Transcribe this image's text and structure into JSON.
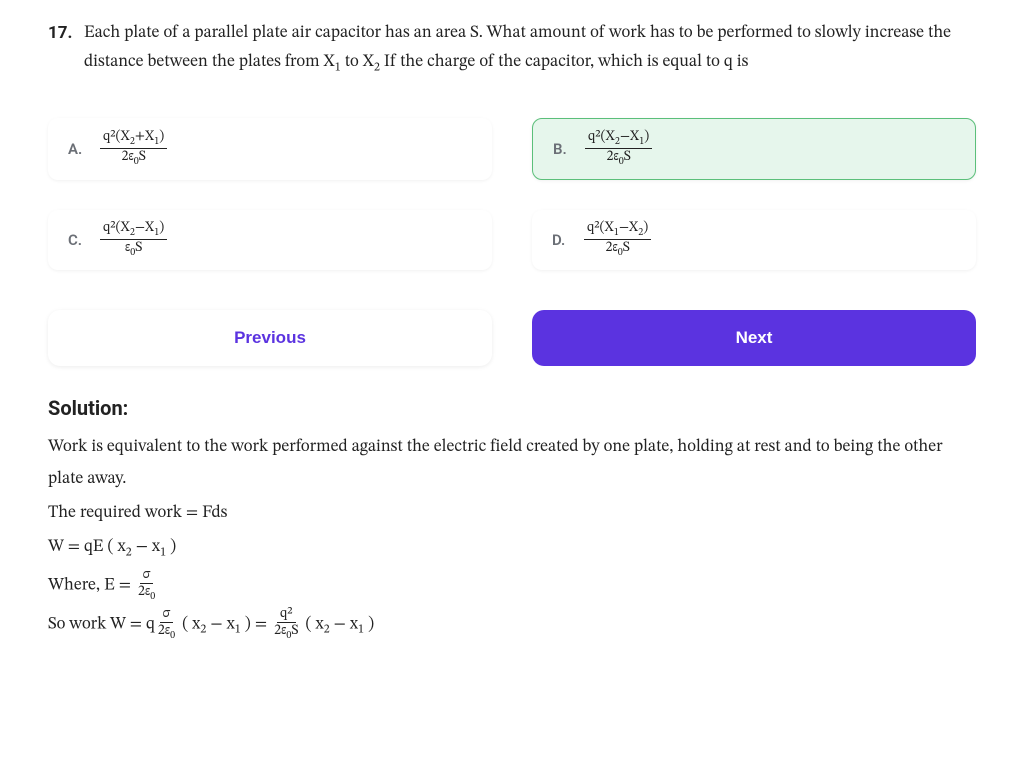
{
  "question": {
    "number": "17.",
    "text_html": "Each plate of a parallel plate air capacitor has an area S. What amount of work has to be performed to slowly increase the distance between the plates from X<sub>1</sub> to X<sub>2</sub>  If the charge of the capacitor, which is equal to q is"
  },
  "options": [
    {
      "letter": "A.",
      "numerator": "q²(X<sub>2</sub>+X<sub>1</sub>)",
      "denominator": "2ε<sub>0</sub>S",
      "correct": false
    },
    {
      "letter": "B.",
      "numerator": "q²(X<sub>2</sub>−X<sub>1</sub>)",
      "denominator": "2ε<sub>0</sub>S",
      "correct": true
    },
    {
      "letter": "C.",
      "numerator": "q²(X<sub>2</sub>−X<sub>1</sub>)",
      "denominator": "ε<sub>0</sub>S",
      "correct": false
    },
    {
      "letter": "D.",
      "numerator": "q²(X<sub>1</sub>−X<sub>2</sub>)",
      "denominator": "2ε<sub>0</sub>S",
      "correct": false
    }
  ],
  "nav": {
    "previous": "Previous",
    "next": "Next"
  },
  "solution": {
    "title": "Solution:",
    "lines": [
      "Work is equivalent to the work performed against the electric field created by one plate, holding at rest and to being the other plate away.",
      "The required work = Fds",
      "W = qE ( x<sub>2</sub> − x<sub>1</sub> )",
      "Where, E = <span class=\"frac\"><span class=\"num\">σ</span><span class=\"den\">2ε<sub>0</sub></span></span>",
      "So work  W = q<span class=\"frac\"><span class=\"num\">σ</span><span class=\"den\">2ε<sub>0</sub></span></span> ( x<sub>2</sub> − x<sub>1</sub> ) = <span class=\"frac\"><span class=\"num\">q²</span><span class=\"den\">2ε<sub>0</sub>S</span></span> ( x<sub>2</sub> − x<sub>1</sub> )"
    ]
  },
  "styles": {
    "correct_bg": "#e6f6ec",
    "correct_border": "#5bbf7a",
    "next_bg": "#5b33e0",
    "prev_color": "#5b33e0"
  }
}
